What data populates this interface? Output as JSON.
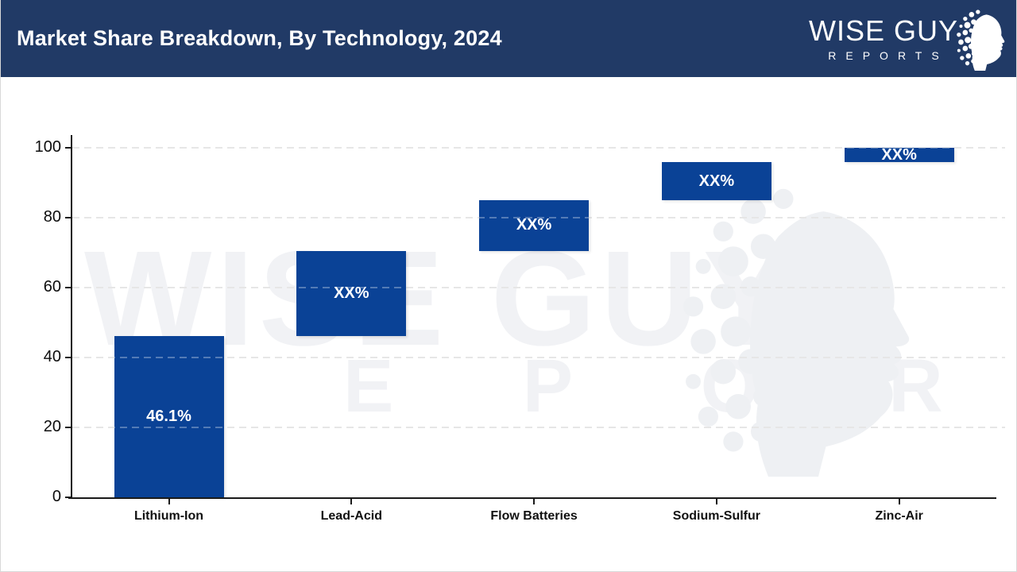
{
  "header": {
    "title": "Market Share Breakdown, By Technology, 2024",
    "logo": {
      "line1": "WISE GUY",
      "line2": "REPORTS"
    },
    "bg_color": "#213a66"
  },
  "watermark": {
    "line1": "WISE GUY",
    "line2": "R E P O R T S"
  },
  "chart_data": {
    "type": "bar",
    "subtype": "waterfall-segments",
    "title": "Market Share Breakdown, By Technology, 2024",
    "xlabel": "",
    "ylabel": "",
    "categories": [
      "Lithium-Ion",
      "Lead-Acid",
      "Flow Batteries",
      "Sodium-Sulfur",
      "Zinc-Air"
    ],
    "segments": [
      {
        "category": "Lithium-Ion",
        "start": 0,
        "end": 46.1,
        "label": "46.1%"
      },
      {
        "category": "Lead-Acid",
        "start": 46.1,
        "end": 70.5,
        "label": "XX%"
      },
      {
        "category": "Flow Batteries",
        "start": 70.5,
        "end": 85.0,
        "label": "XX%"
      },
      {
        "category": "Sodium-Sulfur",
        "start": 85.0,
        "end": 95.8,
        "label": "XX%"
      },
      {
        "category": "Zinc-Air",
        "start": 95.8,
        "end": 100.0,
        "label": "XX%"
      }
    ],
    "yticks": [
      0,
      20,
      40,
      60,
      80,
      100
    ],
    "ylim": [
      0,
      104
    ],
    "bar_color": "#0a4296",
    "grid": "dashed-horizontal",
    "legend": "none"
  }
}
